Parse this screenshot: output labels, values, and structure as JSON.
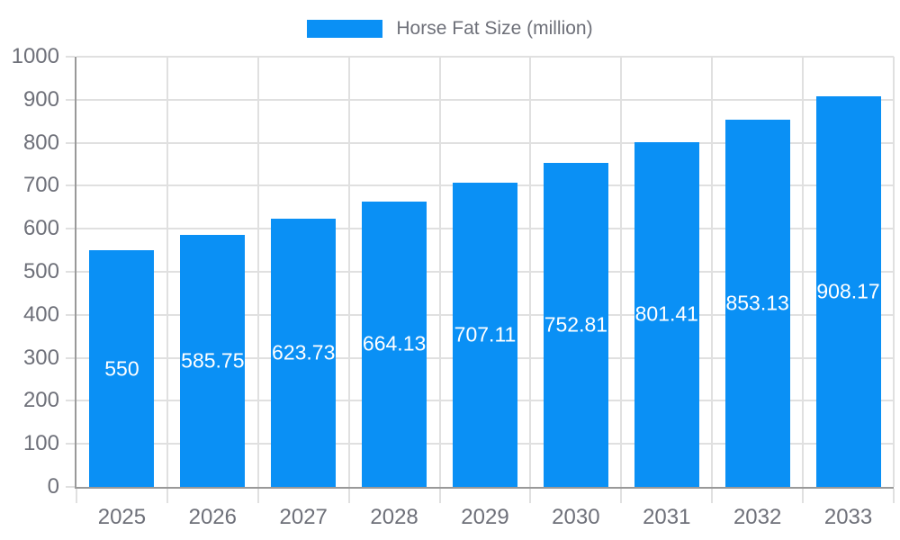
{
  "legend": {
    "label": "Horse Fat Size (million)"
  },
  "colors": {
    "bar": "#0a90f5",
    "bar_label": "#ffffff",
    "grid": "#e0e0e0",
    "axis": "#999999",
    "tick_text": "#6e7079",
    "legend_text": "#6e7079",
    "background": "#ffffff"
  },
  "chart_data": {
    "type": "bar",
    "title": "Horse Fat Size (million)",
    "series_name": "Horse Fat Size (million)",
    "categories": [
      "2025",
      "2026",
      "2027",
      "2028",
      "2029",
      "2030",
      "2031",
      "2032",
      "2033"
    ],
    "values": [
      550,
      585.75,
      623.73,
      664.13,
      707.11,
      752.81,
      801.41,
      853.13,
      908.17
    ],
    "value_labels": [
      "550",
      "585.75",
      "623.73",
      "664.13",
      "707.11",
      "752.81",
      "801.41",
      "853.13",
      "908.17"
    ],
    "xlabel": "",
    "ylabel": "",
    "ylim": [
      0,
      1000
    ],
    "yticks": [
      0,
      100,
      200,
      300,
      400,
      500,
      600,
      700,
      800,
      900,
      1000
    ],
    "grid": true,
    "legend_position": "top-center",
    "value_label_position": "inside-center"
  }
}
